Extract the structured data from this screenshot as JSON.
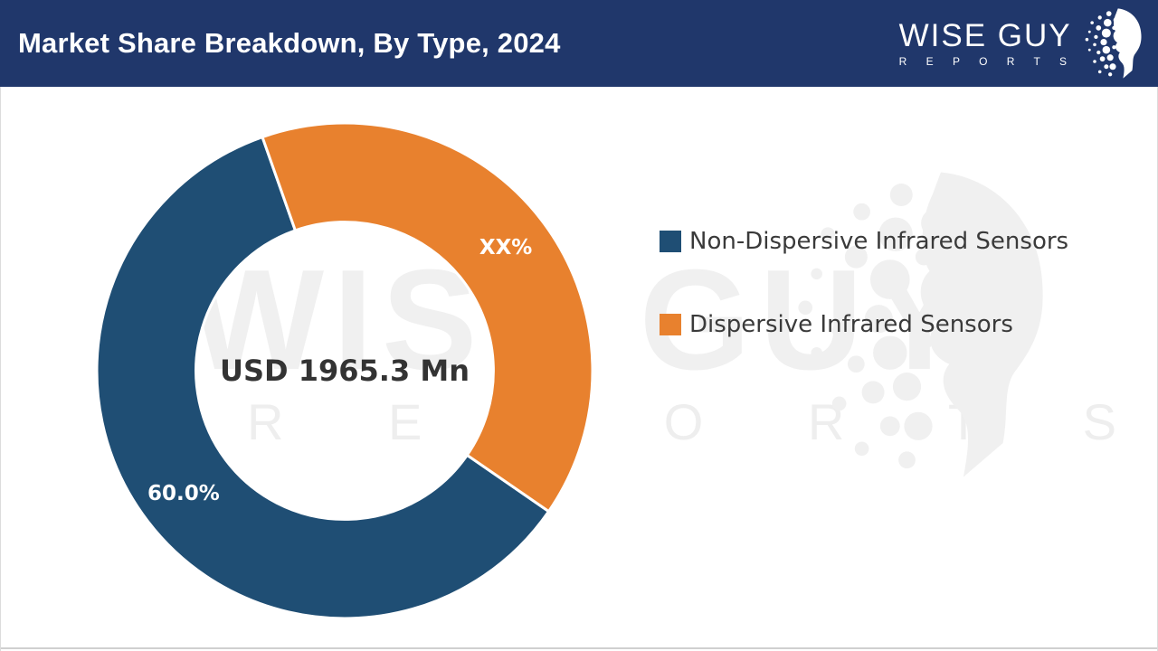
{
  "header": {
    "title": "Market Share Breakdown, By Type, 2024",
    "bg_color": "#20376B",
    "logo": {
      "line1": "WISE GUY",
      "line2": "R E P O R T S"
    }
  },
  "watermark": {
    "line1": "WISE GUY",
    "line2": "R E P O R T S"
  },
  "chart_data": {
    "type": "pie",
    "subtype": "donut",
    "title": "Market Share Breakdown, By Type, 2024",
    "center_label": "USD 1965.3 Mn",
    "start_angle_deg": 124.6,
    "inner_radius_ratio": 0.6,
    "legend_position": "right",
    "slices": [
      {
        "label": "Non-Dispersive Infrared Sensors",
        "value_pct": 60.0,
        "display_label": "60.0%",
        "color": "#1F4E74"
      },
      {
        "label": "Dispersive Infrared Sensors",
        "value_pct": 40.0,
        "display_label": "XX%",
        "color": "#E8812E"
      }
    ]
  }
}
